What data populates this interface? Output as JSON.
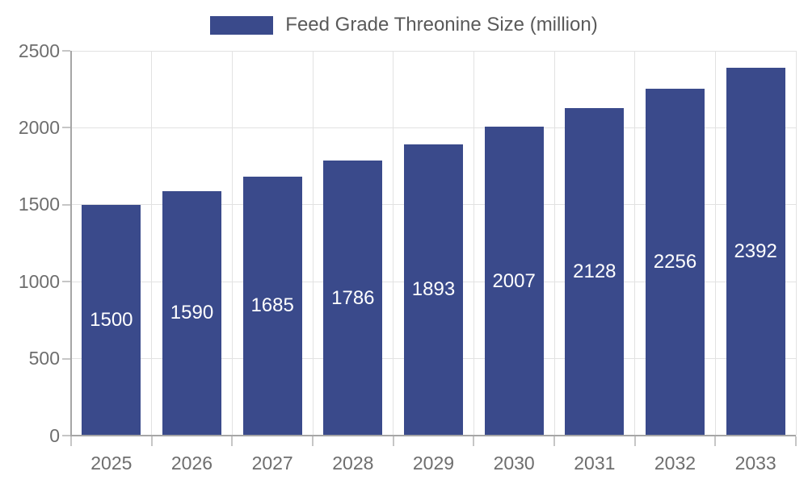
{
  "legend": {
    "label": "Feed Grade Threonine Size (million)"
  },
  "chart_data": {
    "type": "bar",
    "title": "",
    "categories": [
      "2025",
      "2026",
      "2027",
      "2028",
      "2029",
      "2030",
      "2031",
      "2032",
      "2033"
    ],
    "series": [
      {
        "name": "Feed Grade Threonine Size (million)",
        "values": [
          1500,
          1590,
          1685,
          1786,
          1893,
          2007,
          2128,
          2256,
          2392
        ]
      }
    ],
    "xlabel": "",
    "ylabel": "",
    "ylim": [
      0,
      2500
    ],
    "yticks": [
      0,
      500,
      1000,
      1500,
      2000,
      2500
    ],
    "grid": "on",
    "legend_position": "top-center",
    "bar_label_position": "inside-center"
  },
  "colors": {
    "bar": "#3a4a8b",
    "bar_label": "#ffffff",
    "grid": "#e2e2e2",
    "axis": "#a6a6a6",
    "tick": "#c6c6c6",
    "tick_label": "#6e6e6e",
    "legend_text": "#5a5a5a",
    "background": "#ffffff"
  }
}
